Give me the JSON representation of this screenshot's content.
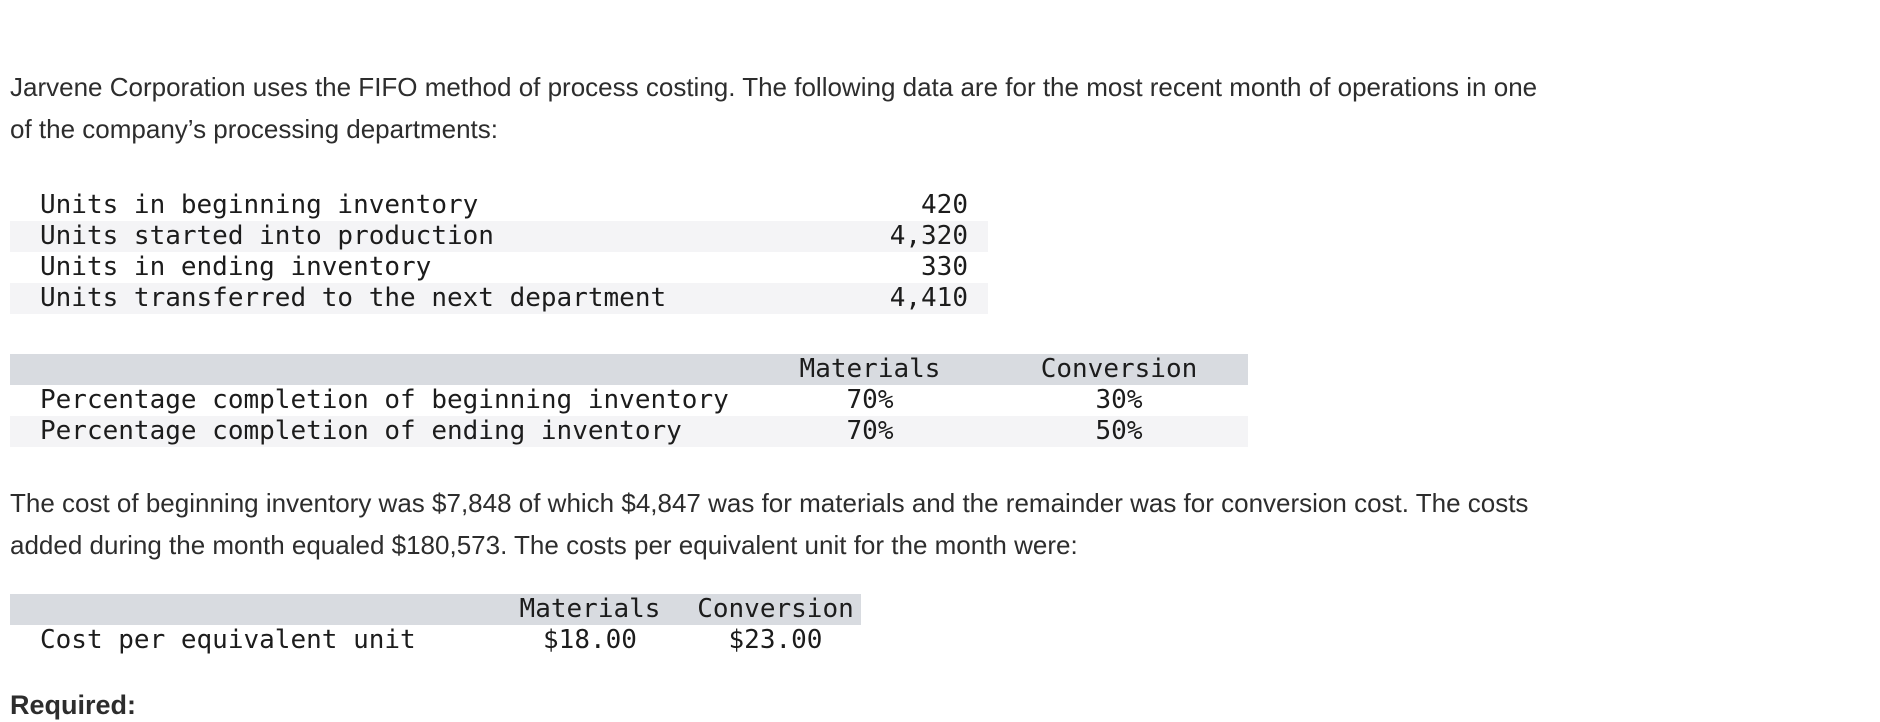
{
  "intro": {
    "line1": "Jarvene Corporation uses the FIFO method of process costing. The following data are for the most recent month of operations in one",
    "line2": "of the company’s processing departments:"
  },
  "units_table": {
    "rows": [
      {
        "label": "Units in beginning inventory",
        "value": "420"
      },
      {
        "label": "Units started into production",
        "value": "4,320"
      },
      {
        "label": "Units in ending inventory",
        "value": "330"
      },
      {
        "label": "Units transferred to the next department",
        "value": "4,410"
      }
    ]
  },
  "completion_table": {
    "headers": {
      "materials": "Materials",
      "conversion": "Conversion"
    },
    "rows": [
      {
        "label": "Percentage completion of beginning inventory",
        "materials": "70%",
        "conversion": "30%"
      },
      {
        "label": "Percentage completion of ending inventory",
        "materials": "70%",
        "conversion": "50%"
      }
    ]
  },
  "cost_paragraph": {
    "line1": "The cost of beginning inventory was $7,848 of which $4,847 was for materials and the remainder was for conversion cost. The costs",
    "line2": "added during the month equaled $180,573. The costs per equivalent unit for the month were:"
  },
  "cost_table": {
    "headers": {
      "materials": "Materials",
      "conversion": "Conversion"
    },
    "rows": [
      {
        "label": "Cost per equivalent unit",
        "materials": "$18.00",
        "conversion": "$23.00"
      }
    ]
  },
  "required": {
    "label": "Required:"
  },
  "colors": {
    "header_bg": "#d8dbe0",
    "stripe_bg": "#f4f4f6",
    "text": "#2d2d2d"
  }
}
